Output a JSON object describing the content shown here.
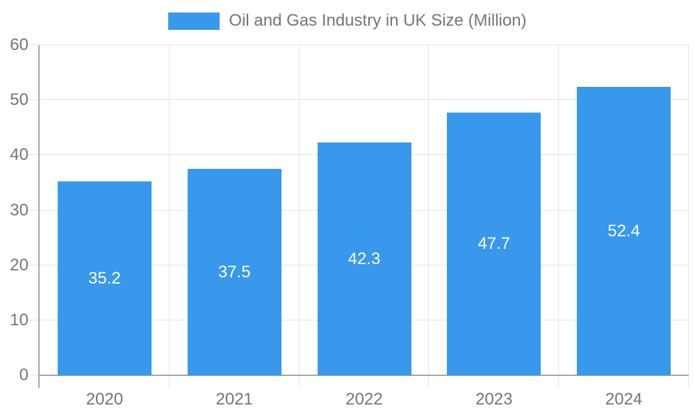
{
  "chart_data": {
    "type": "bar",
    "title": "Oil and Gas Industry in UK Size (Million)",
    "series_name": "Oil and Gas Industry in UK Size (Million)",
    "categories": [
      "2020",
      "2021",
      "2022",
      "2023",
      "2024"
    ],
    "values": [
      35.2,
      37.5,
      42.3,
      47.7,
      52.4
    ],
    "value_labels": [
      "35.2",
      "37.5",
      "42.3",
      "47.7",
      "52.4"
    ],
    "xlabel": "",
    "ylabel": "",
    "ylim": [
      0,
      60
    ],
    "yticks": [
      0,
      10,
      20,
      30,
      40,
      50,
      60
    ],
    "grid": true,
    "legend_position": "top-center",
    "value_label_position": "center-of-bar"
  },
  "colors": {
    "bar": "#3898EC",
    "grid": "#E4E4E4",
    "axis": "#A6A6A6",
    "axis_text": "#757575",
    "value_label": "#FFFFFF",
    "background": "#FFFFFF"
  }
}
